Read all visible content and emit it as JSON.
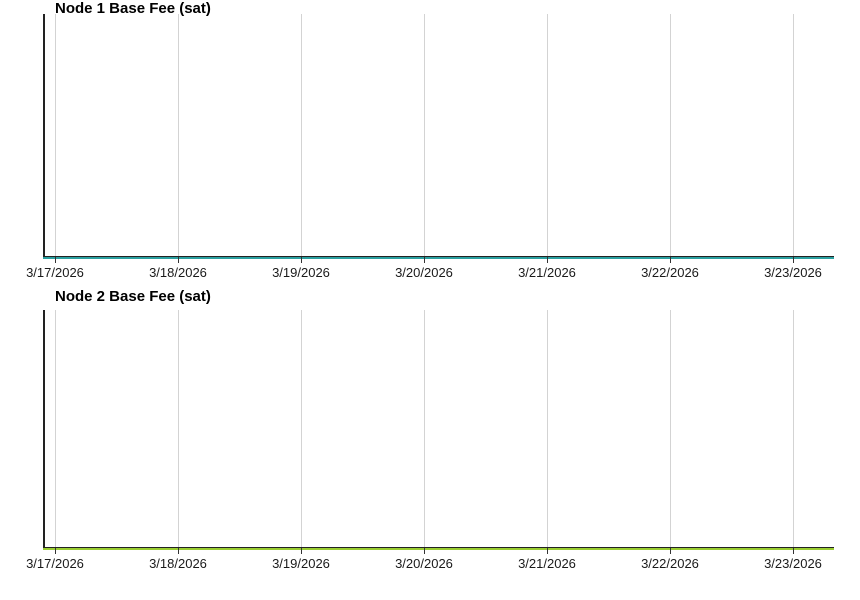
{
  "page": {
    "background": "#ffffff"
  },
  "colors": {
    "axis": "#222222",
    "gridline": "#d3d3d3",
    "tick": "#333333",
    "label_text": "#1a1a1a",
    "title_text": "#000000",
    "series_node1": "#2aa0a0",
    "series_node2": "#9acd32"
  },
  "chart_data": [
    {
      "type": "line",
      "title": "Node 1 Base Fee (sat)",
      "xlabel": "",
      "ylabel": "",
      "x": [
        "3/17/2026",
        "3/18/2026",
        "3/19/2026",
        "3/20/2026",
        "3/21/2026",
        "3/22/2026",
        "3/23/2026"
      ],
      "series": [
        {
          "name": "Node 1 Base Fee",
          "values": [
            0,
            0,
            0,
            0,
            0,
            0,
            0
          ]
        }
      ],
      "color": "#2aa0a0",
      "grid": "vertical-gridlines-only",
      "y_axis_tick_labels": "none",
      "legend_position": "none",
      "line_shape": "flat-constant-at-axis-bottom"
    },
    {
      "type": "line",
      "title": "Node 2 Base Fee (sat)",
      "xlabel": "",
      "ylabel": "",
      "x": [
        "3/17/2026",
        "3/18/2026",
        "3/19/2026",
        "3/20/2026",
        "3/21/2026",
        "3/22/2026",
        "3/23/2026"
      ],
      "series": [
        {
          "name": "Node 2 Base Fee",
          "values": [
            0,
            0,
            0,
            0,
            0,
            0,
            0
          ]
        }
      ],
      "color": "#9acd32",
      "grid": "vertical-gridlines-only",
      "y_axis_tick_labels": "none",
      "legend_position": "none",
      "line_shape": "flat-constant-at-axis-bottom"
    }
  ]
}
